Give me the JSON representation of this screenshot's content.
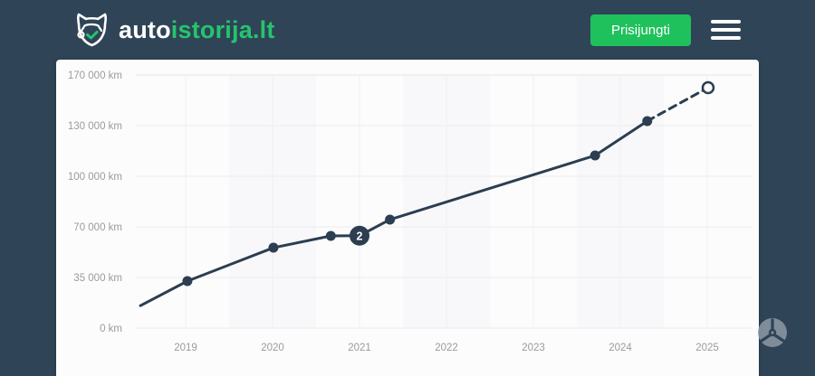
{
  "header": {
    "logo": {
      "text_primary": "auto",
      "text_secondary": "istorija.lt"
    },
    "login_button_label": "Prisijungti"
  },
  "colors": {
    "background_navy": "#2f4456",
    "line_navy": "#2c3e50",
    "accent_green": "#1fc15c",
    "logo_green": "#25c46e",
    "card_background": "#fcfcfd",
    "grid_line": "#ededef",
    "grid_line_top": "#e3e5e7",
    "axis_text": "#9b9b9b",
    "watermark_gray": "#8d99a6"
  },
  "chart_data": {
    "type": "line",
    "title": "",
    "xlabel": "",
    "ylabel": "km",
    "grid": true,
    "legend": "none",
    "y_scale_note": "non-linear axis: ticks evenly spaced in pixels",
    "y_ticks": [
      {
        "value": 170000,
        "label": "170 000 km"
      },
      {
        "value": 130000,
        "label": "130 000 km"
      },
      {
        "value": 100000,
        "label": "100 000 km"
      },
      {
        "value": 70000,
        "label": "70 000 km"
      },
      {
        "value": 35000,
        "label": "35 000 km"
      },
      {
        "value": 0,
        "label": "0 km"
      }
    ],
    "x_ticks": [
      "2019",
      "2020",
      "2021",
      "2022",
      "2023",
      "2024",
      "2025"
    ],
    "series": [
      {
        "name": "odometer-readings",
        "points": [
          {
            "year": 2018.48,
            "km": 15500,
            "marker": "none"
          },
          {
            "year": 2019.02,
            "km": 32500,
            "marker": "dot"
          },
          {
            "year": 2020.01,
            "km": 55600,
            "marker": "dot"
          },
          {
            "year": 2020.67,
            "km": 63750,
            "marker": "dot"
          },
          {
            "year": 2021.0,
            "km": 63900,
            "marker": "badge",
            "badge_label": "2",
            "records": 2
          },
          {
            "year": 2021.35,
            "km": 74300,
            "marker": "dot"
          },
          {
            "year": 2023.71,
            "km": 112300,
            "marker": "dot"
          },
          {
            "year": 2024.31,
            "km": 133600,
            "marker": "dot",
            "dashed_to_next": true
          },
          {
            "year": 2025.01,
            "km": 160000,
            "marker": "open",
            "projected": true
          }
        ]
      }
    ]
  }
}
